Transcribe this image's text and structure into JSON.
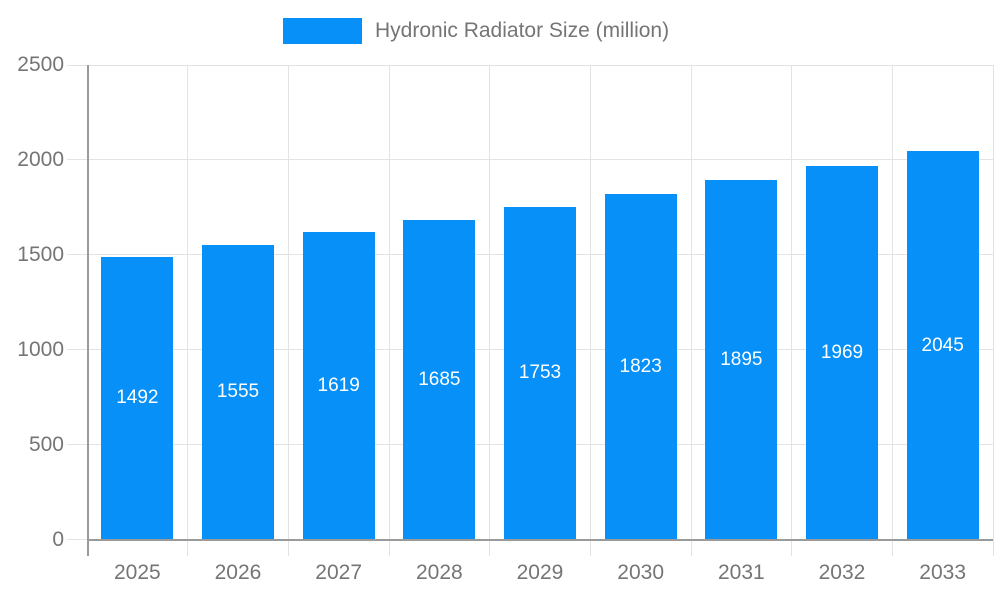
{
  "chart_data": {
    "type": "bar",
    "title": "Hydronic Radiator Size (million)",
    "legend": {
      "label": "Hydronic Radiator Size (million)",
      "position": "top"
    },
    "categories": [
      "2025",
      "2026",
      "2027",
      "2028",
      "2029",
      "2030",
      "2031",
      "2032",
      "2033"
    ],
    "values": [
      1492,
      1555,
      1619,
      1685,
      1753,
      1823,
      1895,
      1969,
      2045
    ],
    "value_labels_inside_bars": true,
    "xlabel": "",
    "ylabel": "",
    "ylim": [
      0,
      2500
    ],
    "y_ticks": [
      0,
      500,
      1000,
      1500,
      2000,
      2500
    ],
    "grid": true,
    "colors": {
      "bar": "#0690f8",
      "grid": "#e3e3e3",
      "axis": "#9a9a9a",
      "tick_label": "#757575",
      "value_label": "#ffffff"
    }
  }
}
